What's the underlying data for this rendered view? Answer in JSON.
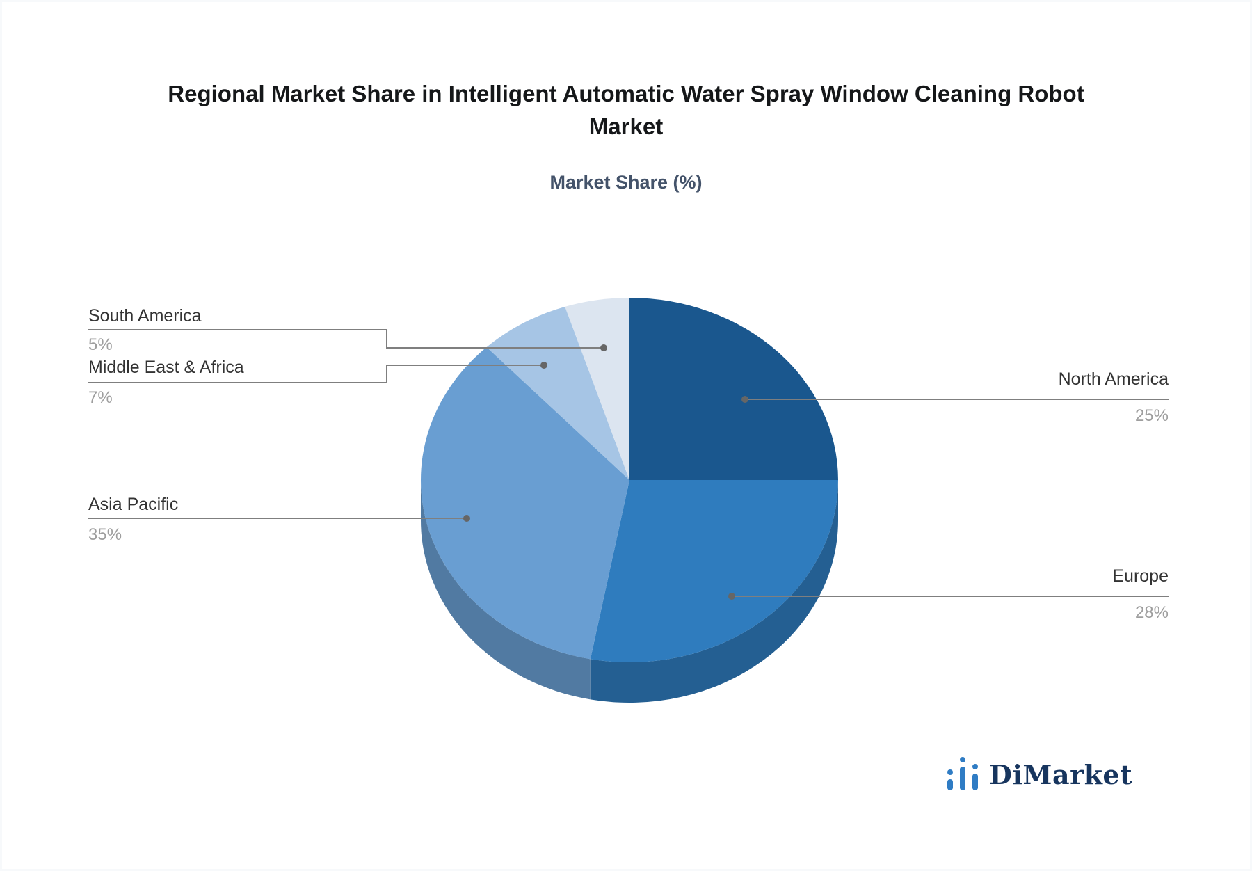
{
  "title": "Regional Market Share in Intelligent Automatic Water Spray Window Cleaning Robot Market",
  "subtitle": "Market Share (%)",
  "chart_data": {
    "type": "pie",
    "style": "3d-depth",
    "title": "Regional Market Share in Intelligent Automatic Water Spray Window Cleaning Robot Market",
    "subtitle": "Market Share (%)",
    "unit": "%",
    "labels": [
      "North America",
      "Europe",
      "Asia Pacific",
      "Middle East & Africa",
      "South America"
    ],
    "values": [
      25,
      28,
      35,
      7,
      5
    ],
    "percent_labels": [
      "25%",
      "28%",
      "35%",
      "7%",
      "5%"
    ],
    "colors": [
      "#1A578E",
      "#2F7CBE",
      "#699ED2",
      "#A6C5E5",
      "#DCE5F0"
    ],
    "start_angle": "12 o'clock, clockwise",
    "legend_position": "none",
    "label_style": "leader-line callouts with region name above line and percent below"
  },
  "callouts": {
    "north_america": {
      "name": "North America",
      "value": "25%"
    },
    "europe": {
      "name": "Europe",
      "value": "28%"
    },
    "asia_pacific": {
      "name": "Asia Pacific",
      "value": "35%"
    },
    "middle_east_africa": {
      "name": "Middle East & Africa",
      "value": "7%"
    },
    "south_america": {
      "name": "South America",
      "value": "5%"
    }
  },
  "logo": {
    "text": "DiMarket",
    "icon": "bar-chart-icon",
    "icon_color": "#2F7CC4",
    "text_color": "#17355E"
  },
  "leader_line_color": "#7f7f7f",
  "marker_color": "#666666"
}
